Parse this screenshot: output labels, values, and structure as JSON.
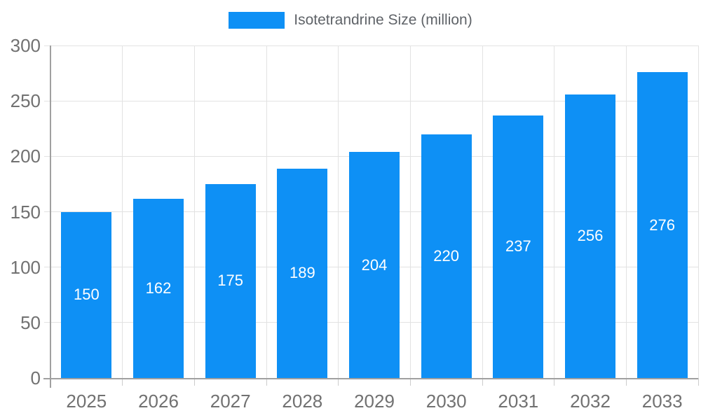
{
  "legend": {
    "label": "Isotetrandrine Size (million)"
  },
  "chart_data": {
    "type": "bar",
    "title": "Isotetrandrine Size (million)",
    "categories": [
      "2025",
      "2026",
      "2027",
      "2028",
      "2029",
      "2030",
      "2031",
      "2032",
      "2033"
    ],
    "values": [
      150,
      162,
      175,
      189,
      204,
      220,
      237,
      256,
      276
    ],
    "xlabel": "",
    "ylabel": "",
    "ylim": [
      0,
      300
    ],
    "yticks": [
      0,
      50,
      100,
      150,
      200,
      250,
      300
    ],
    "grid": true,
    "legend_position": "top-center",
    "value_labels": "inside-center"
  },
  "colors": {
    "bar": "#0e90f5",
    "bar_value_text": "#ffffff",
    "axis_line": "#a0a0a0",
    "gridline": "#e2e2e2",
    "tick_mark": "#cccccc",
    "tick_text": "#717171",
    "legend_text": "#5f6368",
    "background": "#ffffff"
  }
}
